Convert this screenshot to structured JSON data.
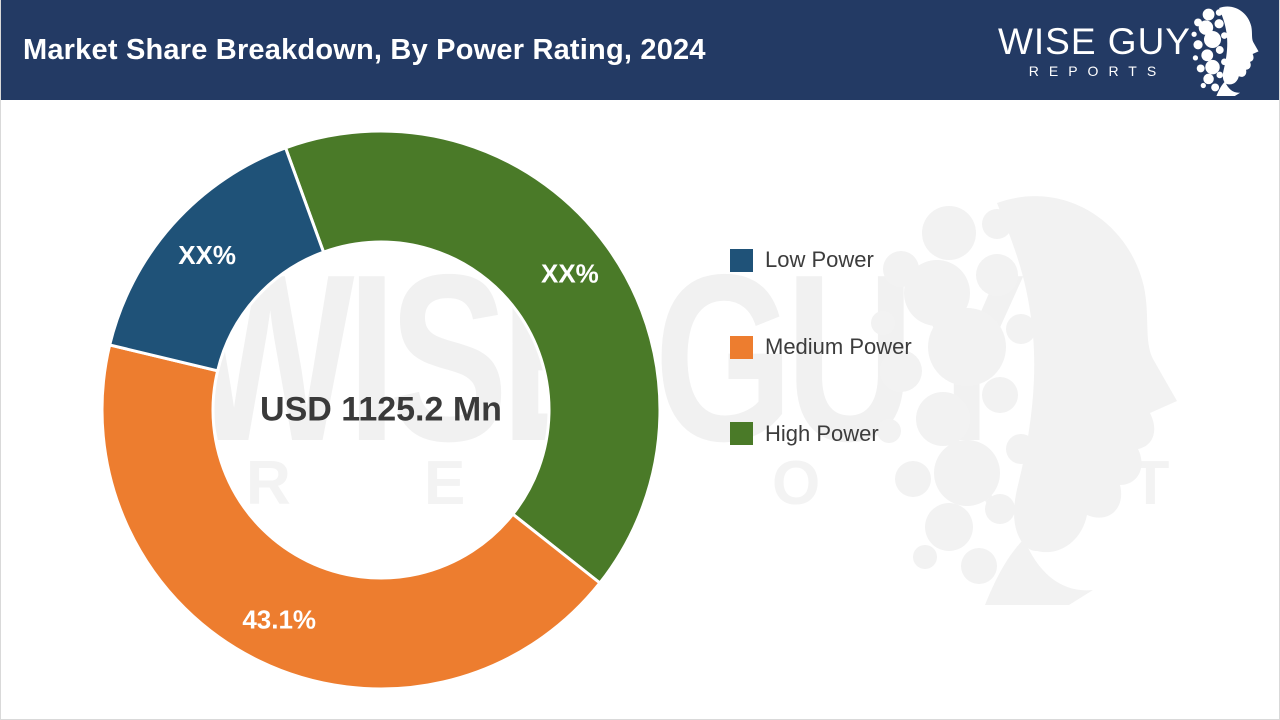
{
  "header": {
    "title": "Market Share Breakdown, By Power Rating, 2024",
    "bg_color": "#233a64",
    "logo": {
      "wordmark": "WISE GUY",
      "subtext": "REPORTS"
    }
  },
  "watermark": {
    "wordmark": "WISE GUY",
    "subtext": "R E P O R T S"
  },
  "chart_data": {
    "type": "donut",
    "title": "Market Share Breakdown, By Power Rating, 2024",
    "center_label": "USD 1125.2 Mn",
    "start_angle_deg": -20,
    "direction": "clockwise",
    "series": [
      {
        "name": "High Power",
        "value_pct": 41.2,
        "label": "XX%",
        "color": "#4a7a28"
      },
      {
        "name": "Medium Power",
        "value_pct": 43.1,
        "label": "43.1%",
        "color": "#ed7d2f"
      },
      {
        "name": "Low Power",
        "value_pct": 15.7,
        "label": "XX%",
        "color": "#1f5278"
      }
    ],
    "legend_position": "right",
    "legend": [
      {
        "name": "Low Power",
        "color": "#1f5278"
      },
      {
        "name": "Medium Power",
        "color": "#ed7d2f"
      },
      {
        "name": "High Power",
        "color": "#4a7a28"
      }
    ]
  }
}
